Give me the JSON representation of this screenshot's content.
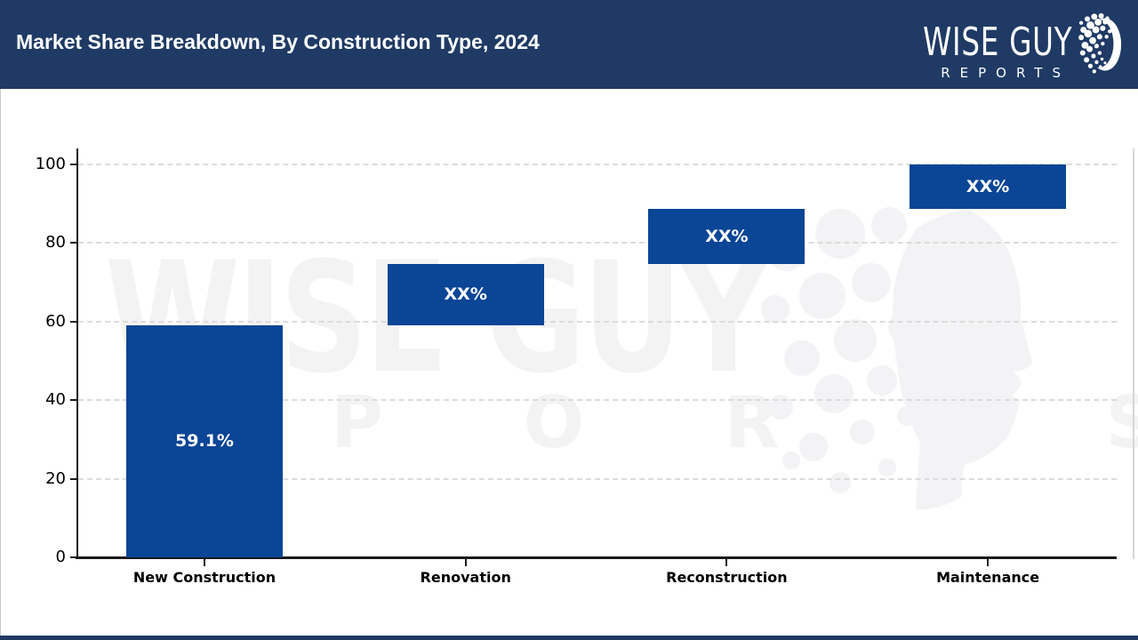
{
  "header": {
    "title": "Market Share Breakdown, By Construction Type, 2024",
    "logo": {
      "wordmark": "WISE GUY",
      "subtitle": "REPORTS"
    }
  },
  "watermark": {
    "wordmark": "WISE GUY",
    "subtitle": "REPORTS"
  },
  "chart_data": {
    "type": "bar",
    "subtype": "waterfall",
    "title": "Market Share Breakdown, By Construction Type, 2024",
    "categories": [
      "New Construction",
      "Renovation",
      "Reconstruction",
      "Maintenance"
    ],
    "segments": [
      {
        "category": "New Construction",
        "start": 0,
        "end": 59.1,
        "label": "59.1%"
      },
      {
        "category": "Renovation",
        "start": 59.1,
        "end": 74.7,
        "label": "XX%"
      },
      {
        "category": "Reconstruction",
        "start": 74.7,
        "end": 88.7,
        "label": "XX%"
      },
      {
        "category": "Maintenance",
        "start": 88.7,
        "end": 100,
        "label": "XX%"
      }
    ],
    "xlabel": "",
    "ylabel": "",
    "ylim": [
      0,
      104
    ],
    "yticks": [
      0,
      20,
      40,
      60,
      80,
      100
    ],
    "grid": "horizontal-dashed",
    "legend": "none",
    "bar_color": "#0a4596",
    "bar_label_color": "#ffffff"
  },
  "colors": {
    "header_bg": "#1f3a64",
    "bar": "#0a4596",
    "watermark": "#f3f3f4",
    "gridline": "#dbdbdb",
    "axis": "#1a1a1a"
  }
}
